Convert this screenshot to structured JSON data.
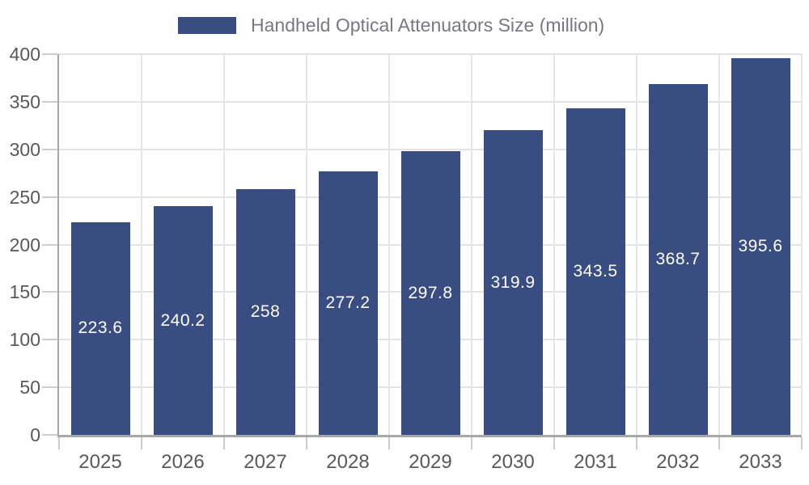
{
  "chart_data": {
    "type": "bar",
    "title": "Handheld Optical Attenuators Size (million)",
    "categories": [
      "2025",
      "2026",
      "2027",
      "2028",
      "2029",
      "2030",
      "2031",
      "2032",
      "2033"
    ],
    "values": [
      223.6,
      240.2,
      258,
      277.2,
      297.8,
      319.9,
      343.5,
      368.7,
      395.6
    ],
    "xlabel": "",
    "ylabel": "",
    "ylim": [
      0,
      400
    ],
    "yticks": [
      0,
      50,
      100,
      150,
      200,
      250,
      300,
      350,
      400
    ],
    "grid": true,
    "legend_position": "top",
    "colors": {
      "bar": "#394D83",
      "bar_label": "#FFFFFF",
      "grid": "#E3E3E3",
      "axis": "#A8A8A8",
      "tick_mark": "#CBCDD3",
      "tick_text": "#595959",
      "legend_text": "#76797E",
      "background": "#FFFFFF"
    }
  }
}
